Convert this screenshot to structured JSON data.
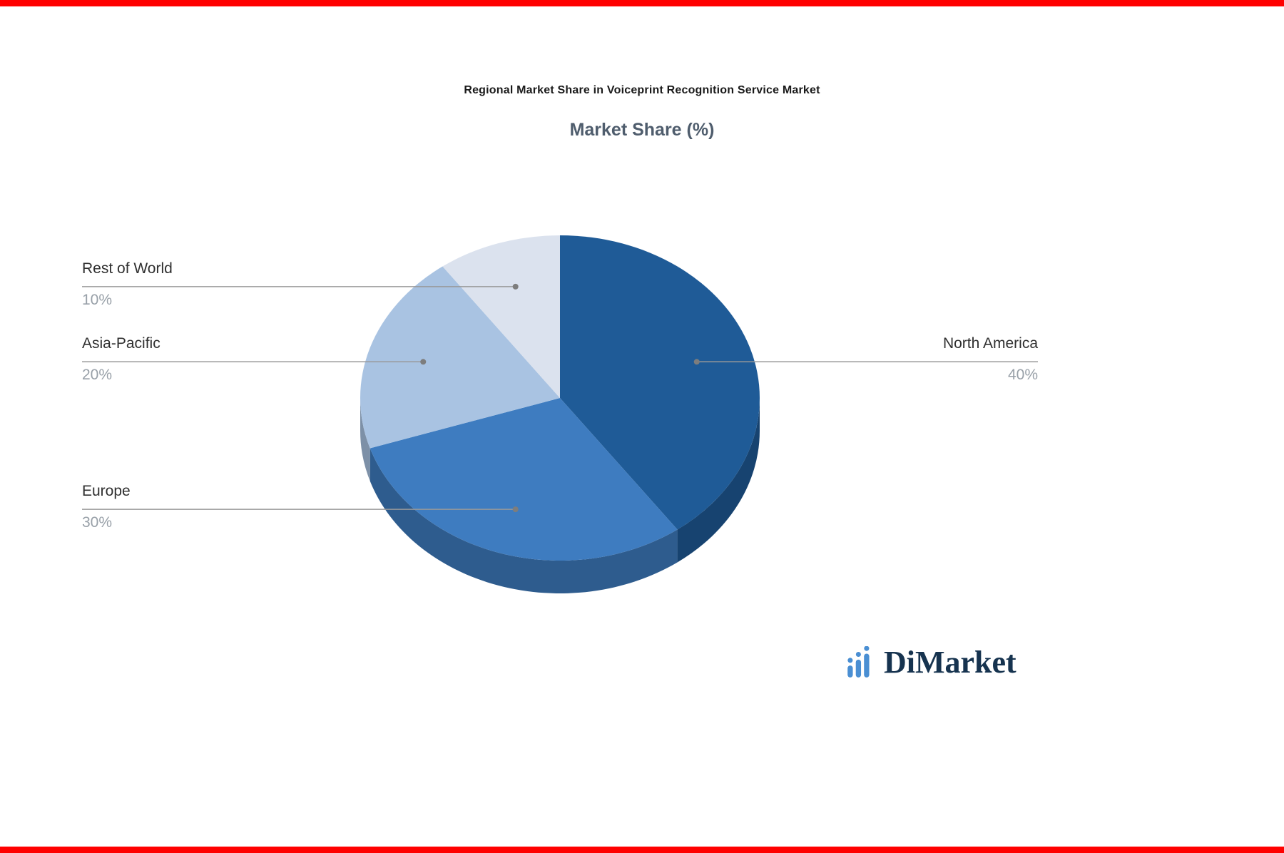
{
  "header": {
    "title": "Regional Market Share in Voiceprint Recognition Service Market",
    "subtitle": "Market Share (%)"
  },
  "chart_data": {
    "type": "pie",
    "style": "3d",
    "title": "Regional Market Share in Voiceprint Recognition Service Market",
    "subtitle": "Market Share (%)",
    "unit": "%",
    "categories": [
      "North America",
      "Europe",
      "Asia-Pacific",
      "Rest of World"
    ],
    "values": [
      40,
      30,
      20,
      10
    ],
    "labels": [
      "40%",
      "30%",
      "20%",
      "10%"
    ],
    "colors": [
      "#1f5b97",
      "#3e7cc0",
      "#a9c3e2",
      "#dbe2ee"
    ],
    "start_angle_deg": 0,
    "direction": "clockwise",
    "legend_position": "none",
    "leader_line_color": "#999999",
    "leader_dot_color": "#7d7d7d"
  },
  "accents": {
    "bar_color": "#ff0000"
  },
  "branding": {
    "logo_text": "DiMarket",
    "logo_icon": "bar-chart-icon",
    "logo_text_color": "#16334f",
    "logo_icon_color": "#4a8fd3"
  }
}
